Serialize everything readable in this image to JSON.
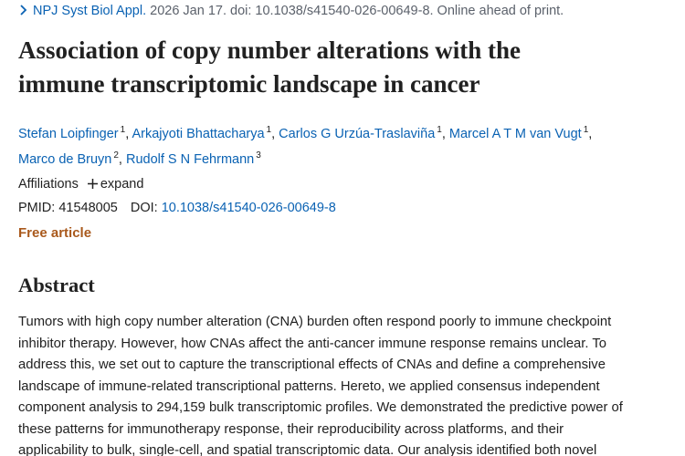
{
  "citation": {
    "journal": "NPJ Syst Biol Appl.",
    "details": "2026 Jan 17. doi: 10.1038/s41540-026-00649-8. Online ahead of print."
  },
  "title_lines": [
    "Association of copy number alterations with the",
    "immune transcriptomic landscape in cancer"
  ],
  "authors": [
    {
      "name": "Stefan Loipfinger",
      "affiliation": "1"
    },
    {
      "name": "Arkajyoti Bhattacharya",
      "affiliation": "1"
    },
    {
      "name": "Carlos G Urzúa-Traslaviña",
      "affiliation": "1"
    },
    {
      "name": "Marcel A T M van Vugt",
      "affiliation": "1"
    },
    {
      "name": "Marco de Bruyn",
      "affiliation": "2"
    },
    {
      "name": "Rudolf S N Fehrmann",
      "affiliation": "3"
    }
  ],
  "author_separator": ",",
  "affiliations": {
    "label": "Affiliations",
    "toggle": "expand"
  },
  "identifiers": {
    "pmid_label": "PMID:",
    "pmid": "41548005",
    "doi_label": "DOI:",
    "doi": "10.1038/s41540-026-00649-8"
  },
  "access": "Free article",
  "abstract": {
    "heading": "Abstract",
    "lines": [
      "Tumors with high copy number alteration (CNA) burden often respond poorly to immune checkpoint",
      "inhibitor therapy. However, how CNAs affect the anti-cancer immune response remains unclear. To",
      "address this, we set out to capture the transcriptional effects of CNAs and define a comprehensive",
      "landscape of immune-related transcriptional patterns. Hereto, we applied consensus independent",
      "component analysis to 294,159 bulk transcriptomic profiles. We demonstrated the predictive power of",
      "these patterns for immunotherapy response, their reproducibility across platforms, and their",
      "applicability to bulk, single-cell, and spatial transcriptomic data. Our analysis identified both novel"
    ]
  }
}
